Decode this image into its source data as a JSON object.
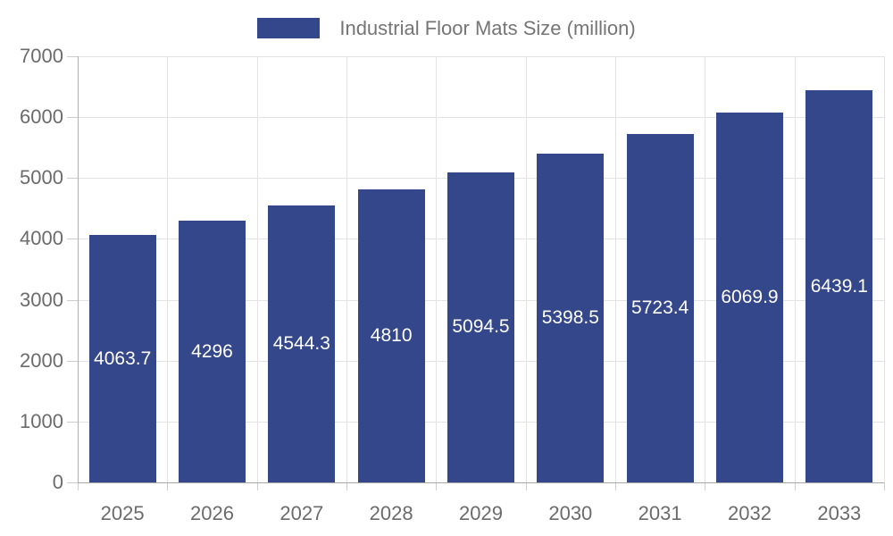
{
  "chart_data": {
    "type": "bar",
    "title": "Industrial Floor Mats Size (million)",
    "legend": {
      "position": "top",
      "entries": [
        "Industrial Floor Mats Size (million)"
      ]
    },
    "categories": [
      "2025",
      "2026",
      "2027",
      "2028",
      "2029",
      "2030",
      "2031",
      "2032",
      "2033"
    ],
    "series": [
      {
        "name": "Industrial Floor Mats Size (million)",
        "values": [
          4063.7,
          4296,
          4544.3,
          4810,
          5094.5,
          5398.5,
          5723.4,
          6069.9,
          6439.1
        ],
        "data_labels": [
          "4063.7",
          "4296",
          "4544.3",
          "4810",
          "5094.5",
          "5398.5",
          "5723.4",
          "6069.9",
          "6439.1"
        ]
      }
    ],
    "xlabel": "",
    "ylabel": "",
    "ylim": [
      0,
      7000
    ],
    "yticks": [
      0,
      1000,
      2000,
      3000,
      4000,
      5000,
      6000,
      7000
    ],
    "ytick_labels": [
      "0",
      "1000",
      "2000",
      "3000",
      "4000",
      "5000",
      "6000",
      "7000"
    ],
    "grid": true,
    "colors": {
      "bar": "#35478b",
      "bar_label_text": "#ffffff",
      "axis_text": "#6b6b6b",
      "title_text": "#757575",
      "gridline": "#e3e3e3",
      "axis_line": "#a8a8a8"
    }
  }
}
